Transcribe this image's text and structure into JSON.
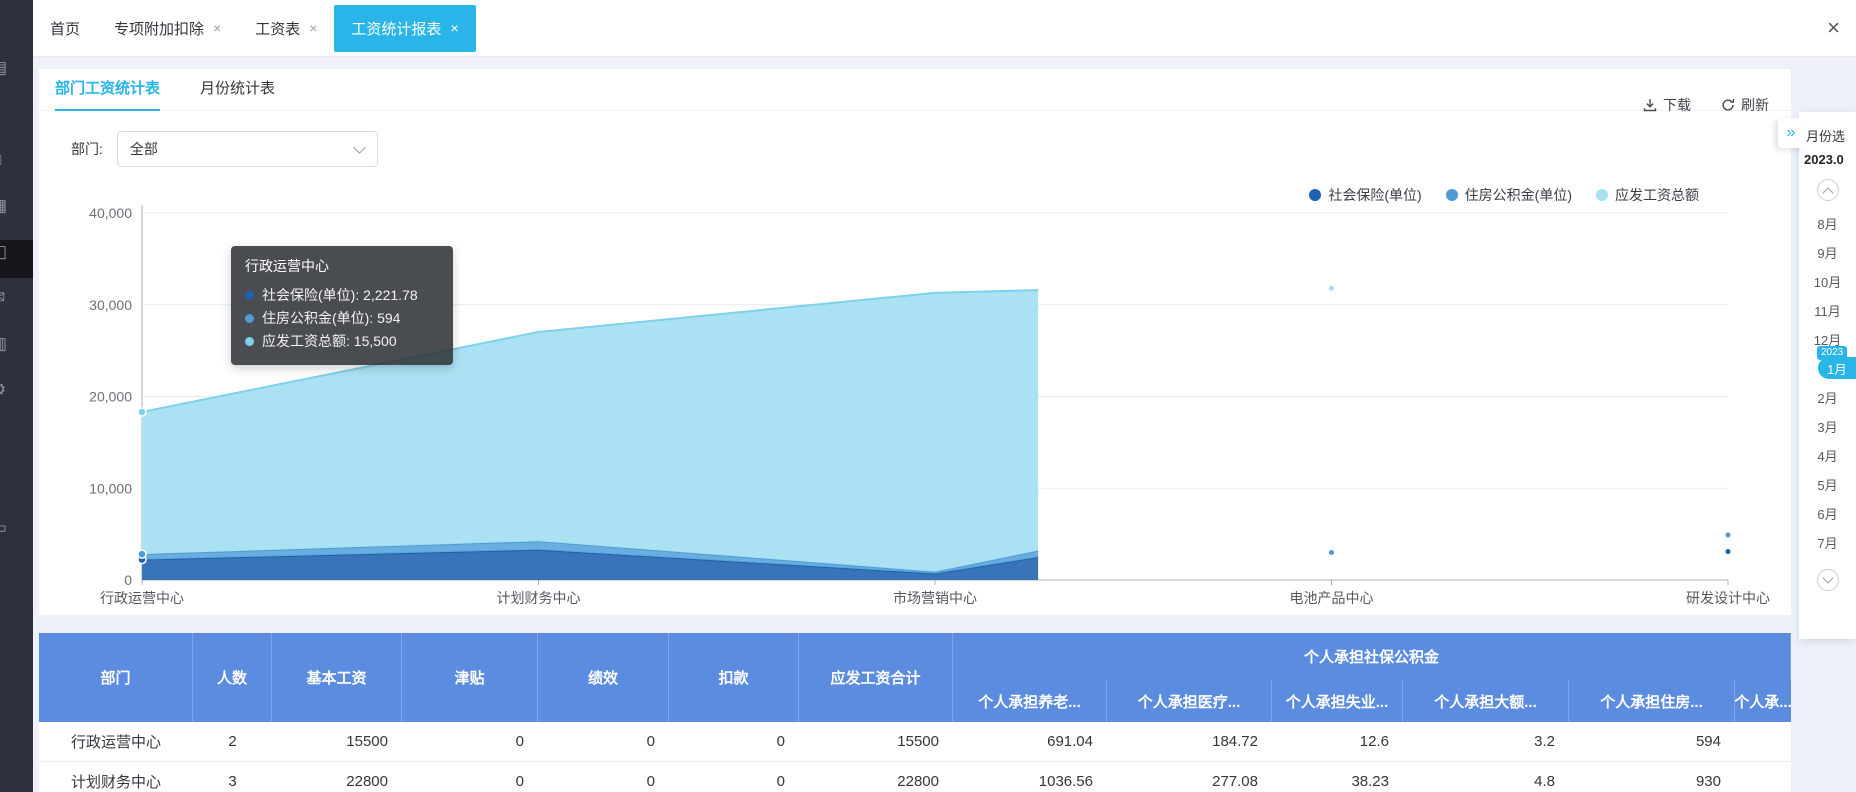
{
  "colors": {
    "accent": "#2ab5e8",
    "table_header": "#5b8ce0",
    "grid_line": "#e8eaee",
    "axis": "#aab0b8",
    "tooltip_bg": "rgba(48,52,58,0.88)",
    "sidebar_bg": "#2e313c",
    "content_bg": "#eef2f8"
  },
  "sidebar": {
    "icons": [
      "⌂",
      "▤",
      "○",
      "□",
      "▦",
      "◫",
      "✉",
      "▥",
      "⚙",
      "≡",
      "◔",
      "▭",
      "○"
    ]
  },
  "tabbar": {
    "close_icon": "×",
    "tabs": [
      {
        "label": "首页",
        "closable": false,
        "active": false
      },
      {
        "label": "专项附加扣除",
        "closable": true,
        "active": false
      },
      {
        "label": "工资表",
        "closable": true,
        "active": false
      },
      {
        "label": "工资统计报表",
        "closable": true,
        "active": true
      }
    ]
  },
  "subtabs": [
    {
      "label": "部门工资统计表",
      "active": true
    },
    {
      "label": "月份统计表",
      "active": false
    }
  ],
  "toolbar": {
    "download_label": "下载",
    "refresh_label": "刷新"
  },
  "filter": {
    "label": "部门:",
    "value": "全部"
  },
  "chart_data": {
    "type": "area",
    "stacked": true,
    "categories": [
      "行政运营中心",
      "计划财务中心",
      "市场营销中心",
      "电池产品中心",
      "研发设计中心"
    ],
    "series": [
      {
        "name": "社会保险(单位)",
        "color": "#1d62ae",
        "fill": "#2f6db4",
        "values": [
          2221.78,
          3300,
          700
        ]
      },
      {
        "name": "住房公积金(单位)",
        "color": "#4e9bd6",
        "fill": "#62a9dd",
        "values": [
          594,
          930,
          200
        ]
      },
      {
        "name": "应发工资总额",
        "color": "#7fd0ea",
        "fill": "#a6e0f2",
        "values": [
          15500,
          22800,
          30400
        ]
      }
    ],
    "cut_at_category": 2.26,
    "cut_values": [
      2500,
      700,
      28400
    ],
    "scatter": [
      {
        "category": 3,
        "value": 31800,
        "color": "#a6e0f2"
      },
      {
        "category": 3,
        "value": 3000,
        "color": "#4e9bd6"
      },
      {
        "category": 4,
        "value": 4900,
        "color": "#4e9bd6"
      },
      {
        "category": 4,
        "value": 3100,
        "color": "#1d62ae"
      }
    ],
    "ylim": [
      0,
      40000
    ],
    "yticks": [
      {
        "v": 0,
        "label": "0"
      },
      {
        "v": 10000,
        "label": "10,000"
      },
      {
        "v": 20000,
        "label": "20,000"
      },
      {
        "v": 30000,
        "label": "30,000"
      },
      {
        "v": 40000,
        "label": "40,000"
      }
    ],
    "legend_position": "top-right",
    "grid": true
  },
  "tooltip": {
    "title": "行政运营中心",
    "items": [
      {
        "label": "社会保险(单位)",
        "value": "2,221.78",
        "color": "#1d62ae"
      },
      {
        "label": "住房公积金(单位)",
        "value": "594",
        "color": "#4e9bd6"
      },
      {
        "label": "应发工资总额",
        "value": "15,500",
        "color": "#7fd0ea"
      }
    ]
  },
  "month_panel": {
    "collapse_icon": "»",
    "title": "月份选",
    "current": "2023.0",
    "year_badge": "2023",
    "months": [
      "8月",
      "9月",
      "10月",
      "11月",
      "12月",
      "1月",
      "2月",
      "3月",
      "4月",
      "5月",
      "6月",
      "7月"
    ],
    "selected": "1月"
  },
  "table": {
    "columns": [
      "部门",
      "人数",
      "基本工资",
      "津贴",
      "绩效",
      "扣款",
      "应发工资合计"
    ],
    "group_header": "个人承担社保公积金",
    "group_columns": [
      "个人承担养老...",
      "个人承担医疗...",
      "个人承担失业...",
      "个人承担大额...",
      "个人承担住房...",
      "个人承..."
    ],
    "rows": [
      [
        "行政运营中心",
        "2",
        "15500",
        "0",
        "0",
        "0",
        "15500",
        "691.04",
        "184.72",
        "12.6",
        "3.2",
        "594",
        ""
      ],
      [
        "计划财务中心",
        "3",
        "22800",
        "0",
        "0",
        "0",
        "22800",
        "1036.56",
        "277.08",
        "38.23",
        "4.8",
        "930",
        ""
      ]
    ]
  }
}
